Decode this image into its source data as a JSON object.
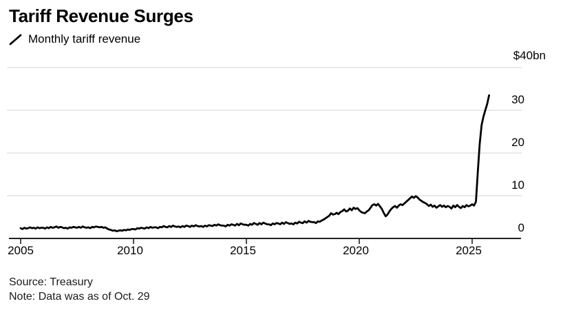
{
  "header": {
    "title": "Tariff Revenue Surges"
  },
  "legend": {
    "label": "Monthly tariff revenue",
    "marker": "diagonal-line",
    "color": "#000000"
  },
  "footer": {
    "source": "Source: Treasury",
    "note": "Note: Data was as of Oct. 29"
  },
  "chart_data": {
    "type": "line",
    "title": "Tariff Revenue Surges",
    "series_name": "Monthly tariff revenue",
    "unit": "$bn",
    "x_start_year": 2005,
    "points_per_year": 12,
    "x_ticks": [
      "2005",
      "2010",
      "2015",
      "2020",
      "2025"
    ],
    "x_tick_years": [
      2005,
      2010,
      2015,
      2020,
      2025
    ],
    "y_ticks": [
      "$40bn",
      "30",
      "20",
      "10",
      "0"
    ],
    "y_tick_values": [
      40,
      30,
      20,
      10,
      0
    ],
    "ylim": [
      0,
      40
    ],
    "grid": "horizontal",
    "legend_position": "top-left",
    "line_color": "#000000",
    "grid_color": "#dcdcdc",
    "axis_color": "#000000",
    "values": [
      2.4,
      2.2,
      2.5,
      2.3,
      2.4,
      2.6,
      2.4,
      2.5,
      2.3,
      2.6,
      2.4,
      2.5,
      2.5,
      2.3,
      2.6,
      2.4,
      2.7,
      2.5,
      2.6,
      2.8,
      2.5,
      2.7,
      2.6,
      2.4,
      2.5,
      2.3,
      2.6,
      2.5,
      2.7,
      2.6,
      2.5,
      2.7,
      2.5,
      2.8,
      2.6,
      2.5,
      2.6,
      2.4,
      2.7,
      2.6,
      2.8,
      2.7,
      2.6,
      2.7,
      2.5,
      2.6,
      2.3,
      2.1,
      2.0,
      1.8,
      1.9,
      1.7,
      1.8,
      1.9,
      1.8,
      2.0,
      1.9,
      2.1,
      2.0,
      2.2,
      2.2,
      2.1,
      2.4,
      2.3,
      2.5,
      2.4,
      2.3,
      2.6,
      2.4,
      2.7,
      2.5,
      2.6,
      2.6,
      2.4,
      2.7,
      2.6,
      2.9,
      2.7,
      2.6,
      2.9,
      2.7,
      3.0,
      2.8,
      2.7,
      2.8,
      2.6,
      2.9,
      2.7,
      3.0,
      2.9,
      2.7,
      3.0,
      2.8,
      3.1,
      2.9,
      2.8,
      2.9,
      2.7,
      3.0,
      2.8,
      3.1,
      3.0,
      2.9,
      3.2,
      3.0,
      3.3,
      3.1,
      3.0,
      3.0,
      2.8,
      3.2,
      3.0,
      3.3,
      3.2,
      3.0,
      3.4,
      3.1,
      3.5,
      3.3,
      3.2,
      3.2,
      3.0,
      3.4,
      3.2,
      3.6,
      3.4,
      3.2,
      3.6,
      3.3,
      3.7,
      3.5,
      3.3,
      3.3,
      3.1,
      3.5,
      3.3,
      3.6,
      3.5,
      3.3,
      3.7,
      3.4,
      3.8,
      3.6,
      3.4,
      3.5,
      3.3,
      3.7,
      3.5,
      3.9,
      3.7,
      3.6,
      4.0,
      3.7,
      4.1,
      3.9,
      3.8,
      3.8,
      3.6,
      4.0,
      3.9,
      4.2,
      4.4,
      4.7,
      5.0,
      5.3,
      5.9,
      5.6,
      5.7,
      6.0,
      5.7,
      6.2,
      6.4,
      6.8,
      6.3,
      6.5,
      7.0,
      6.6,
      7.2,
      6.9,
      7.1,
      6.6,
      6.2,
      6.0,
      5.9,
      6.3,
      6.6,
      7.2,
      7.8,
      8.0,
      7.7,
      8.1,
      7.5,
      6.9,
      6.0,
      5.2,
      5.6,
      6.3,
      6.9,
      7.3,
      7.6,
      7.2,
      7.7,
      8.0,
      7.8,
      8.2,
      8.6,
      9.0,
      9.4,
      9.8,
      9.5,
      9.9,
      9.6,
      9.1,
      8.8,
      8.5,
      8.3,
      8.0,
      7.6,
      7.9,
      7.4,
      7.7,
      7.2,
      7.5,
      7.8,
      7.4,
      7.7,
      7.3,
      7.6,
      7.4,
      7.0,
      7.7,
      7.3,
      7.8,
      7.4,
      7.1,
      7.6,
      7.3,
      7.8,
      7.5,
      7.7,
      8.0,
      7.7,
      8.6,
      15.5,
      22.0,
      26.5,
      28.5,
      30.0,
      31.5,
      33.5
    ]
  }
}
